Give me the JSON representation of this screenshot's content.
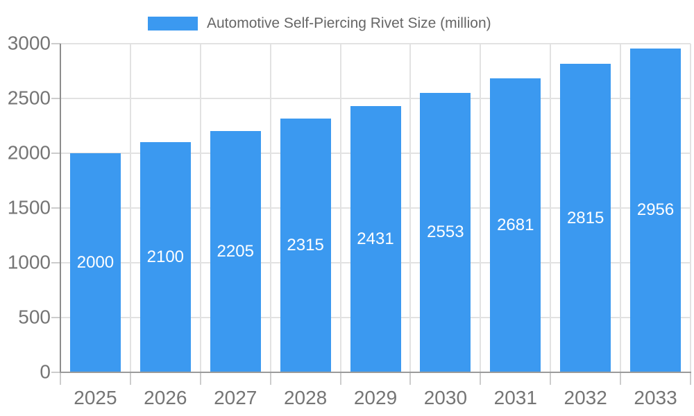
{
  "legend": {
    "label": "Automotive Self-Piercing Rivet Size (million)"
  },
  "colors": {
    "bar": "#3b99f0",
    "grid": "#e2e2e2",
    "tick": "#cccccc",
    "y_axis": "#8d8d8d",
    "x_axis": "#9a9a9a",
    "axis_label": "#757575",
    "legend_text": "#666666",
    "bar_label": "#ffffff",
    "background": "#ffffff"
  },
  "chart_data": {
    "type": "bar",
    "title": "Automotive Self-Piercing Rivet Size (million)",
    "series_name": "Automotive Self-Piercing Rivet Size (million)",
    "categories": [
      "2025",
      "2026",
      "2027",
      "2028",
      "2029",
      "2030",
      "2031",
      "2032",
      "2033"
    ],
    "values": [
      2000,
      2100,
      2205,
      2315,
      2431,
      2553,
      2681,
      2815,
      2956
    ],
    "xlabel": "",
    "ylabel": "",
    "ylim": [
      0,
      3000
    ],
    "yticks": [
      0,
      500,
      1000,
      1500,
      2000,
      2500,
      3000
    ],
    "grid": true,
    "legend_position": "top",
    "bar_value_labels": "inside-center"
  }
}
